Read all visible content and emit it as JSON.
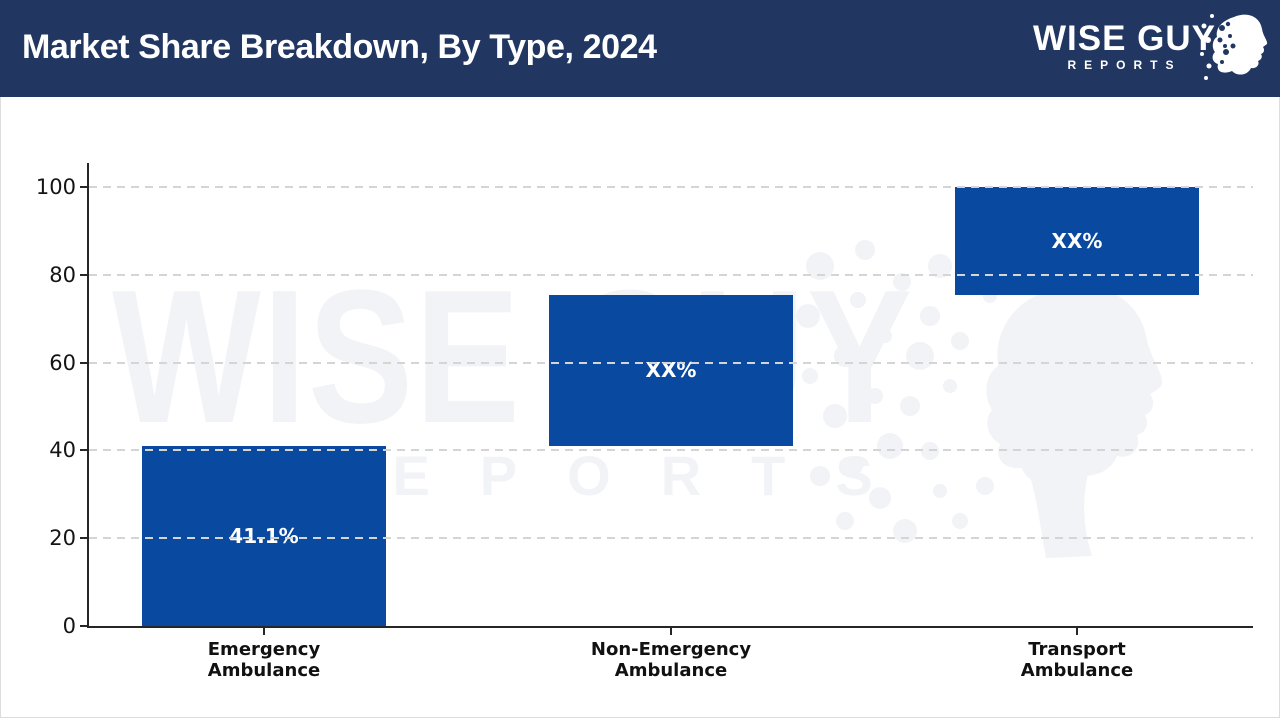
{
  "header": {
    "title": "Market Share Breakdown, By Type, 2024",
    "logo": {
      "line1": "WISE GUY",
      "line2": "REPORTS"
    }
  },
  "watermark": {
    "line1": "WISE GUY",
    "line2": "REPORTS"
  },
  "colors": {
    "header_bg": "#213761",
    "bar": "#0a49a0",
    "bar_label": "#ffffff",
    "grid": "#d5d5d5",
    "axis": "#262626",
    "watermark": "#f2f3f6"
  },
  "chart_data": {
    "type": "bar",
    "variant": "floating_stacked_percentage",
    "title": "Market Share Breakdown, By Type, 2024",
    "categories": [
      [
        "Emergency",
        "Ambulance"
      ],
      [
        "Non-Emergency",
        "Ambulance"
      ],
      [
        "Transport",
        "Ambulance"
      ]
    ],
    "bars": [
      {
        "label": "41.1%",
        "from": 0,
        "to": 41.1
      },
      {
        "label": "XX%",
        "from": 41.1,
        "to": 75.4
      },
      {
        "label": "XX%",
        "from": 75.5,
        "to": 100
      }
    ],
    "yticks": [
      0,
      20,
      40,
      60,
      80,
      100
    ],
    "ylim": [
      0,
      105.5
    ],
    "xlabel": "",
    "ylabel": "",
    "grid": "dashed-horizontal-over-bars",
    "legend": "none",
    "bar_color": "#0a49a0",
    "label_color": "#ffffff"
  }
}
